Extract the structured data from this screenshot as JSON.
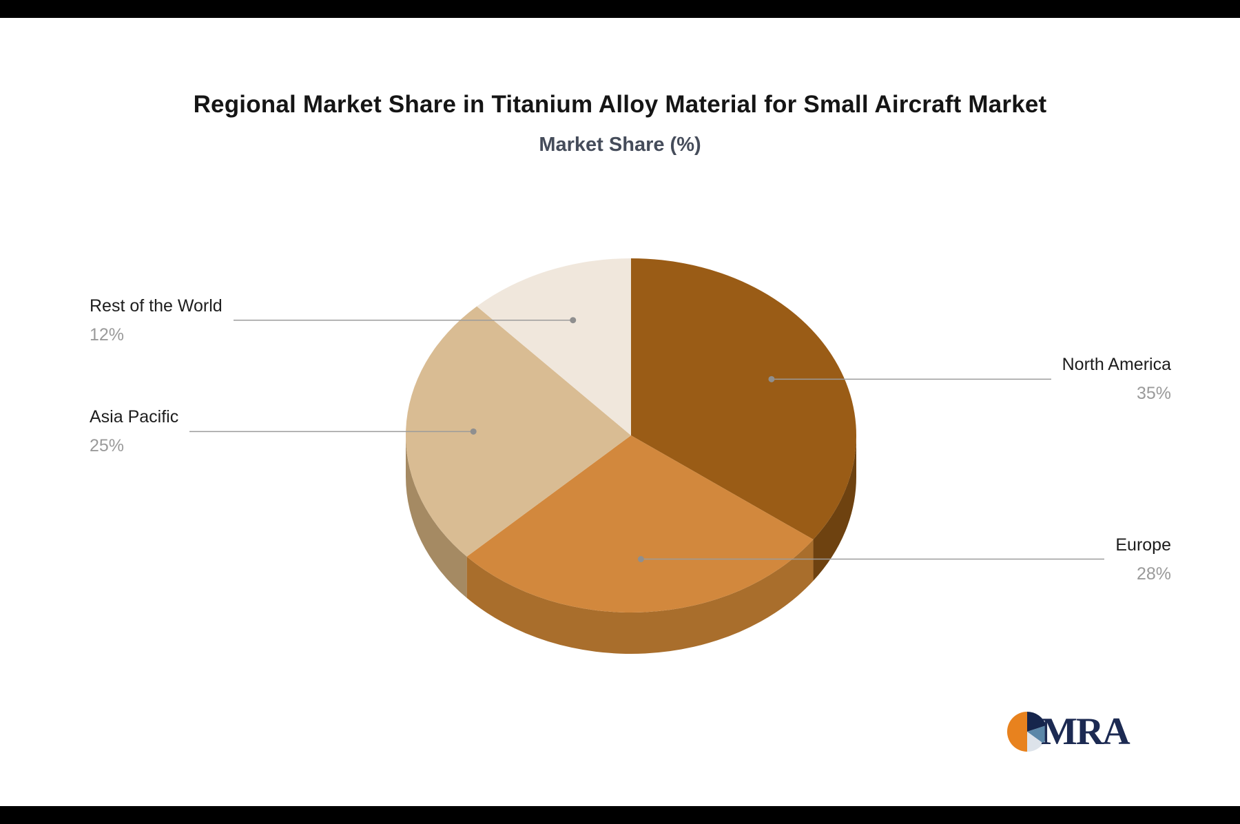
{
  "header": {
    "title": "Regional Market Share in Titanium Alloy Material for Small Aircraft Market",
    "subtitle": "Market Share (%)"
  },
  "chart_data": {
    "type": "pie",
    "style": "3d",
    "title": "Regional Market Share in Titanium Alloy Material for Small Aircraft Market",
    "subtitle": "Market Share (%)",
    "unit": "%",
    "start_angle_deg": 0,
    "direction": "clockwise",
    "legend_position": "none",
    "slices": [
      {
        "label": "North America",
        "value": 35,
        "color": "#9A5C16",
        "side_color": "#6E4210"
      },
      {
        "label": "Europe",
        "value": 28,
        "color": "#D2883D",
        "side_color": "#A96E2C"
      },
      {
        "label": "Asia Pacific",
        "value": 25,
        "color": "#D9BC93",
        "side_color": "#A58A63"
      },
      {
        "label": "Rest of the World",
        "value": 12,
        "color": "#F0E7DC",
        "side_color": "#C2B8AB"
      }
    ],
    "label_color": "#1d1d1d",
    "percent_color": "#9a9a9a",
    "leader_line_color": "#9b9b9b",
    "leader_dot_color": "#8f8f8f"
  },
  "logo": {
    "text": "MRA",
    "text_color": "#1c2a52",
    "icon_slices": [
      {
        "color": "#16254C",
        "value": 20
      },
      {
        "color": "#5B87A8",
        "value": 15
      },
      {
        "color": "#DDE3EA",
        "value": 15
      },
      {
        "color": "#E8821E",
        "value": 50
      }
    ]
  }
}
